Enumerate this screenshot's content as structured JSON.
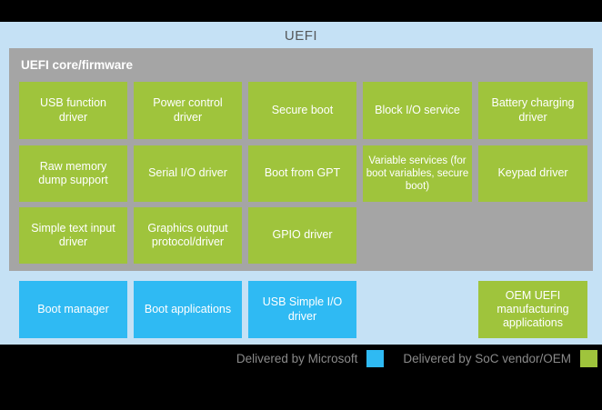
{
  "title": "UEFI",
  "core": {
    "label": "UEFI core/firmware",
    "rows": [
      [
        "USB function driver",
        "Power control driver",
        "Secure boot",
        "Block I/O service",
        "Battery charging driver"
      ],
      [
        "Raw memory dump support",
        "Serial I/O driver",
        "Boot from GPT",
        "Variable services (for boot variables, secure boot)",
        "Keypad driver"
      ],
      [
        "Simple text input driver",
        "Graphics output protocol/driver",
        "GPIO driver"
      ]
    ]
  },
  "microsoft_modules": [
    "Boot manager",
    "Boot applications",
    "USB Simple I/O driver"
  ],
  "oem_modules": [
    "OEM UEFI manufacturing applications"
  ],
  "legend": {
    "microsoft": {
      "label": "Delivered by Microsoft",
      "color": "#2FBAF3"
    },
    "oem": {
      "label": "Delivered by SoC vendor/OEM",
      "color": "#9FC43C"
    }
  },
  "colors": {
    "background": "#C5E1F5",
    "panel": "#A5A5A5",
    "microsoft_blue": "#2FBAF3",
    "oem_green": "#9FC43C"
  }
}
